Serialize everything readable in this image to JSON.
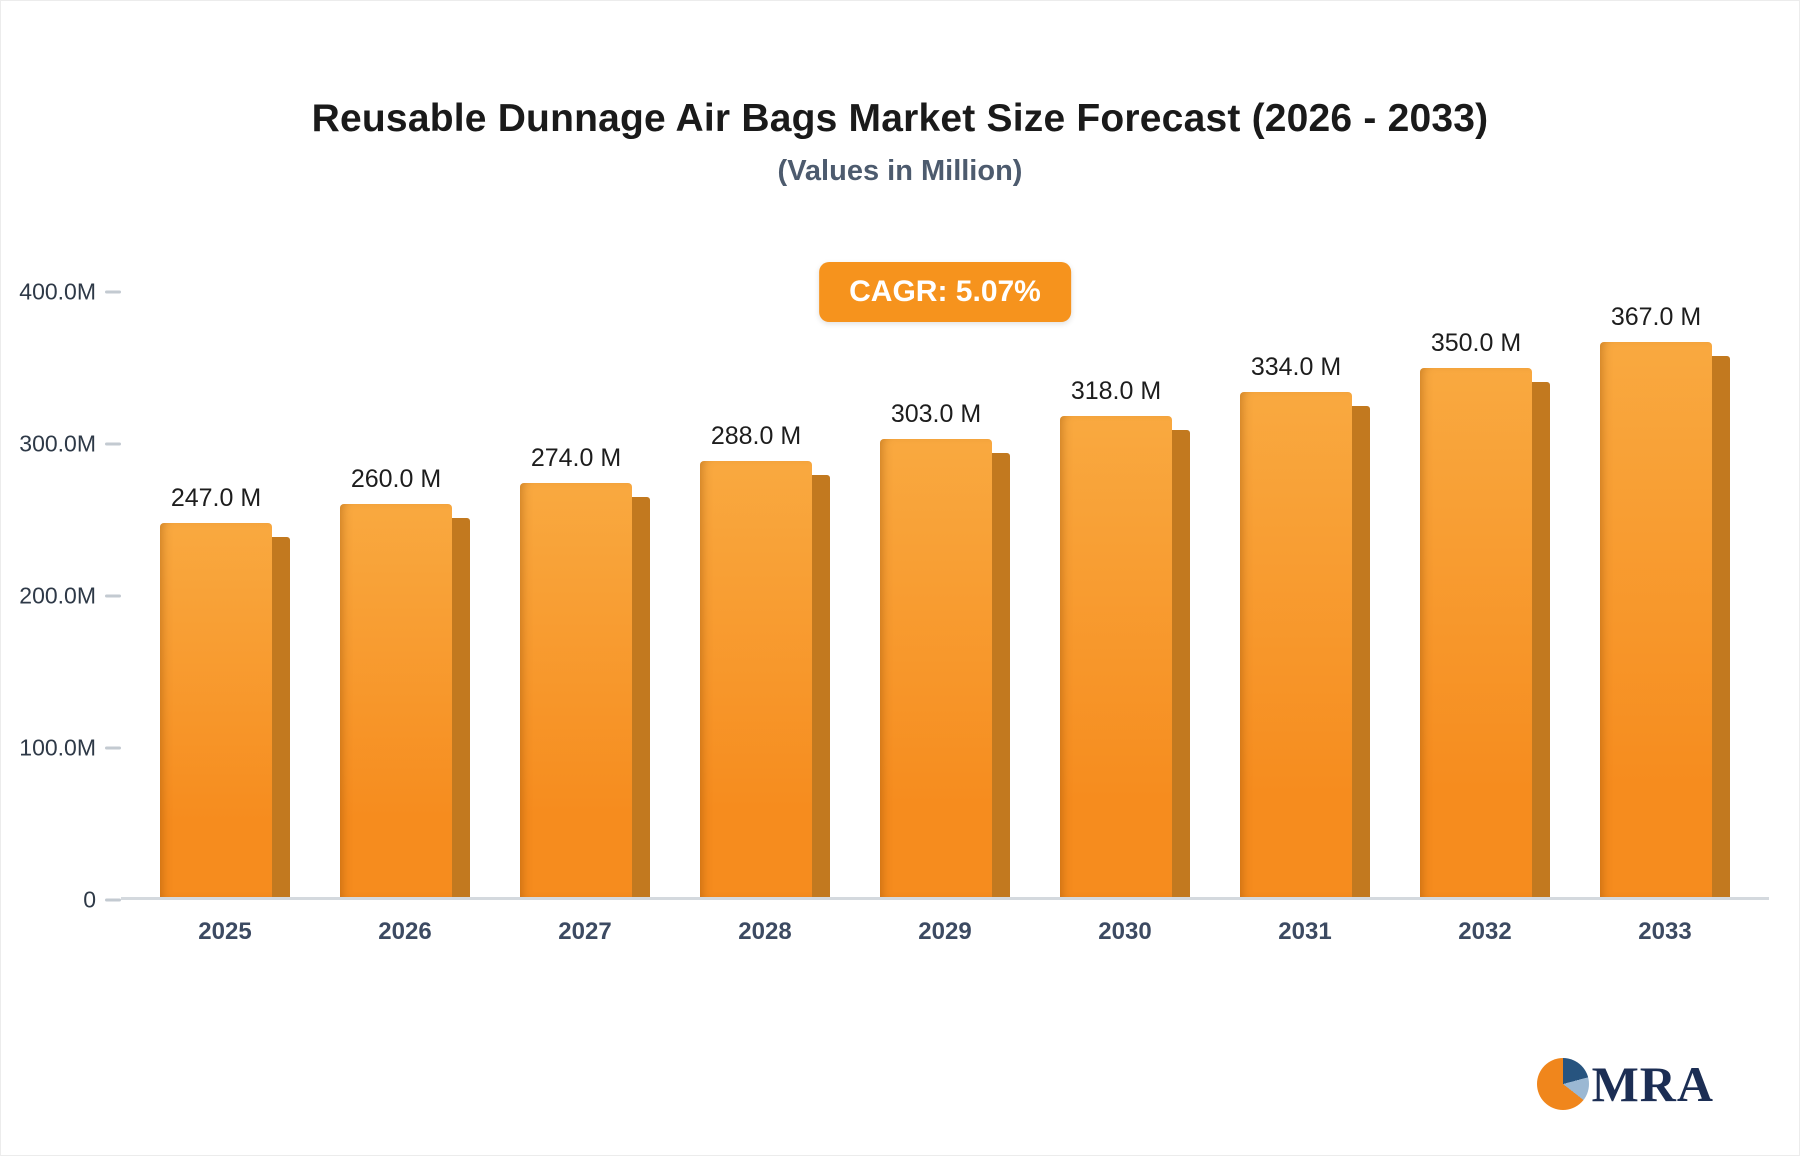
{
  "header": {
    "title": "Reusable Dunnage Air Bags Market Size Forecast (2026 - 2033)",
    "subtitle": "(Values in Million)"
  },
  "badge": {
    "label": "CAGR: 5.07%",
    "color": "#f6931d",
    "text_color": "#ffffff"
  },
  "chart_data": {
    "type": "bar",
    "title": "Reusable Dunnage Air Bags Market Size Forecast (2026 - 2033)",
    "subtitle": "(Values in Million)",
    "unit": "Million",
    "categories": [
      "2025",
      "2026",
      "2027",
      "2028",
      "2029",
      "2030",
      "2031",
      "2032",
      "2033"
    ],
    "values": [
      247.0,
      260.0,
      274.0,
      288.0,
      303.0,
      318.0,
      334.0,
      350.0,
      367.0
    ],
    "value_labels": [
      "247.0 M",
      "260.0 M",
      "274.0 M",
      "288.0 M",
      "303.0 M",
      "318.0 M",
      "334.0 M",
      "350.0 M",
      "367.0 M"
    ],
    "ylim": [
      0,
      400
    ],
    "yticks": [
      {
        "value": 400,
        "label": "400.0M"
      },
      {
        "value": 300,
        "label": "300.0M"
      },
      {
        "value": 200,
        "label": "200.0M"
      },
      {
        "value": 100,
        "label": "100.0M"
      },
      {
        "value": 0,
        "label": "0"
      }
    ],
    "grid": false,
    "legend": false,
    "annotations": [
      "CAGR: 5.07%"
    ],
    "colors": {
      "bar_top": "#f9a940",
      "bar_bottom": "#f68c1e",
      "bar_side": "#c2791f",
      "axis_line": "#d4d9de",
      "tick_label": "#2e3947",
      "value_label": "#1d1d1d",
      "x_label": "#3c4a62"
    }
  },
  "logo": {
    "text": "MRA",
    "text_color": "#1c2e54",
    "circle_colors": {
      "orange": "#f0861c",
      "navy": "#27547f",
      "light_blue": "#9bb8d3"
    }
  }
}
